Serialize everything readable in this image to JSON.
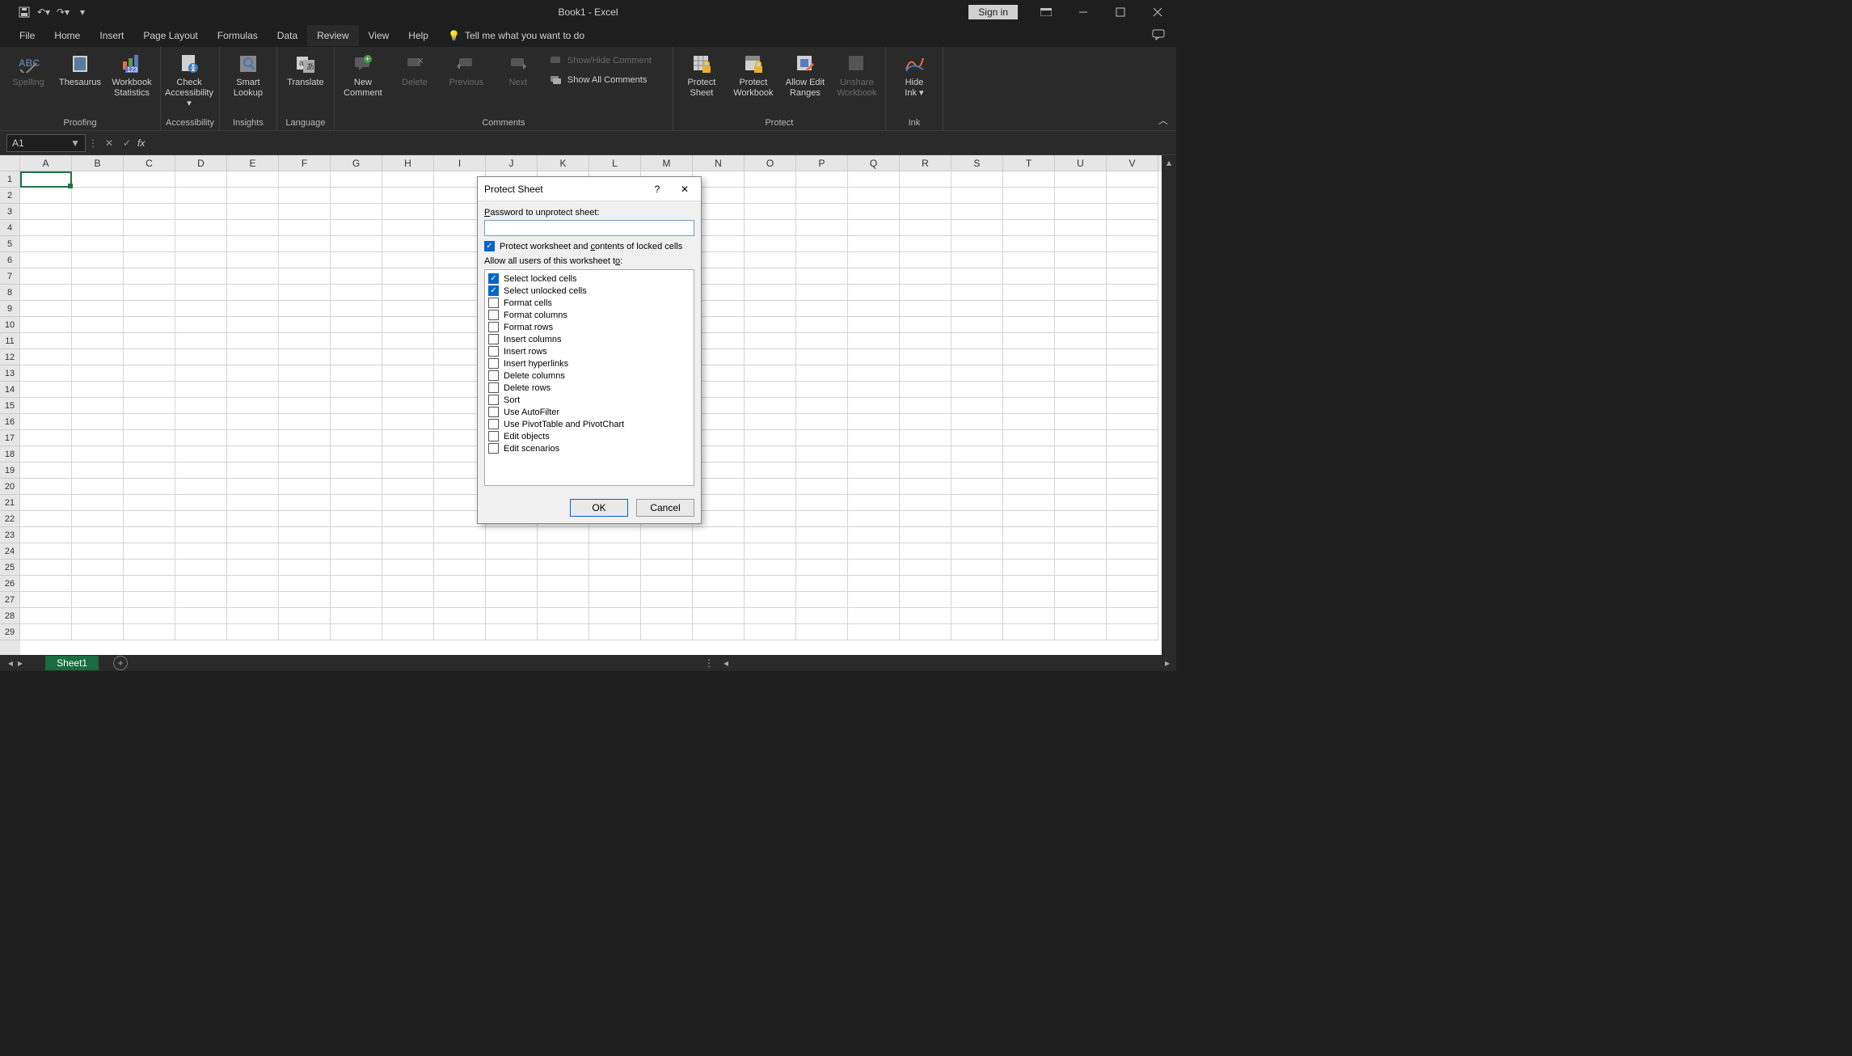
{
  "titlebar": {
    "title": "Book1  -  Excel",
    "signin": "Sign in"
  },
  "menus": {
    "file": "File",
    "home": "Home",
    "insert": "Insert",
    "pagelayout": "Page Layout",
    "formulas": "Formulas",
    "data": "Data",
    "review": "Review",
    "view": "View",
    "help": "Help",
    "tellme": "Tell me what you want to do"
  },
  "ribbon": {
    "proofing": {
      "label": "Proofing",
      "spelling": "Spelling",
      "thesaurus": "Thesaurus",
      "stats": "Workbook\nStatistics"
    },
    "accessibility": {
      "label": "Accessibility",
      "check": "Check\nAccessibility"
    },
    "insights": {
      "label": "Insights",
      "smart": "Smart\nLookup"
    },
    "language": {
      "label": "Language",
      "translate": "Translate"
    },
    "comments": {
      "label": "Comments",
      "new": "New\nComment",
      "delete": "Delete",
      "previous": "Previous",
      "next": "Next",
      "showhide": "Show/Hide Comment",
      "showall": "Show All Comments"
    },
    "protect": {
      "label": "Protect",
      "sheet": "Protect\nSheet",
      "workbook": "Protect\nWorkbook",
      "ranges": "Allow Edit\nRanges",
      "unshare": "Unshare\nWorkbook"
    },
    "ink": {
      "label": "Ink",
      "hide": "Hide\nInk"
    }
  },
  "namebox": "A1",
  "columns": [
    "A",
    "B",
    "C",
    "D",
    "E",
    "F",
    "G",
    "H",
    "I",
    "J",
    "K",
    "L",
    "M",
    "N",
    "O",
    "P",
    "Q",
    "R",
    "S",
    "T",
    "U",
    "V"
  ],
  "rowCount": 29,
  "sheet": {
    "name": "Sheet1"
  },
  "dialog": {
    "title": "Protect Sheet",
    "pwdlabel": "Password to unprotect sheet:",
    "protect_contents": "Protect worksheet and contents of locked cells",
    "allowlabel": "Allow all users of this worksheet to:",
    "perms": [
      {
        "label": "Select locked cells",
        "checked": true
      },
      {
        "label": "Select unlocked cells",
        "checked": true
      },
      {
        "label": "Format cells",
        "checked": false
      },
      {
        "label": "Format columns",
        "checked": false
      },
      {
        "label": "Format rows",
        "checked": false
      },
      {
        "label": "Insert columns",
        "checked": false
      },
      {
        "label": "Insert rows",
        "checked": false
      },
      {
        "label": "Insert hyperlinks",
        "checked": false
      },
      {
        "label": "Delete columns",
        "checked": false
      },
      {
        "label": "Delete rows",
        "checked": false
      },
      {
        "label": "Sort",
        "checked": false
      },
      {
        "label": "Use AutoFilter",
        "checked": false
      },
      {
        "label": "Use PivotTable and PivotChart",
        "checked": false
      },
      {
        "label": "Edit objects",
        "checked": false
      },
      {
        "label": "Edit scenarios",
        "checked": false
      }
    ],
    "ok": "OK",
    "cancel": "Cancel"
  },
  "colors": {
    "accent": "#217346",
    "dialog_check": "#0066cc",
    "bg_dark": "#1e1e1e",
    "ribbon_bg": "#2a2a2a"
  }
}
